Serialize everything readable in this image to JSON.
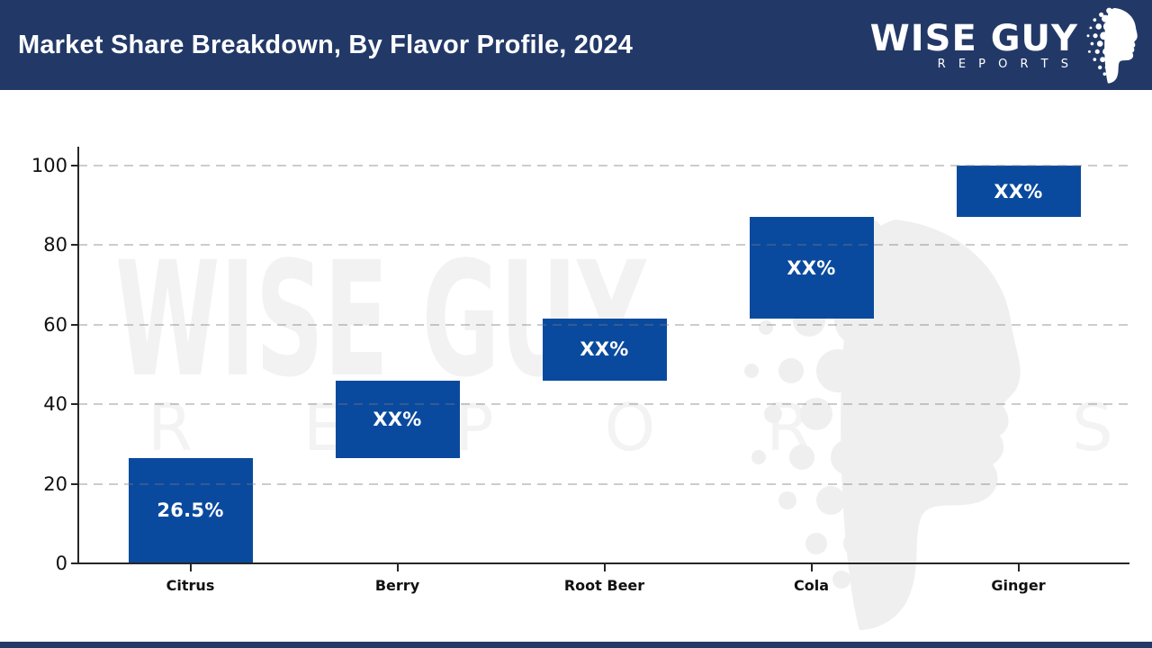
{
  "header": {
    "title": "Market Share Breakdown, By Flavor Profile, 2024",
    "bg_color": "#223968",
    "logo": {
      "brand_line1": "WISE GUY",
      "brand_line2": "R E P O R T S"
    }
  },
  "watermark": {
    "line1": "WISE GUY",
    "line2": "R E P O R T S"
  },
  "chart_data": {
    "type": "bar",
    "subtype": "waterfall",
    "title": "Market Share Breakdown, By Flavor Profile, 2024",
    "categories": [
      "Citrus",
      "Berry",
      "Root Beer",
      "Cola",
      "Ginger"
    ],
    "segments": [
      {
        "category": "Citrus",
        "start": 0,
        "end": 26.5,
        "label": "26.5%"
      },
      {
        "category": "Berry",
        "start": 26.5,
        "end": 46,
        "label": "XX%"
      },
      {
        "category": "Root Beer",
        "start": 46,
        "end": 61.5,
        "label": "XX%"
      },
      {
        "category": "Cola",
        "start": 61.5,
        "end": 87,
        "label": "XX%"
      },
      {
        "category": "Ginger",
        "start": 87,
        "end": 100,
        "label": "XX%"
      }
    ],
    "yticks": [
      0,
      20,
      40,
      60,
      80,
      100
    ],
    "ylim": [
      0,
      100
    ],
    "grid": "horizontal-dashed",
    "legend": "none",
    "bar_color": "#0a4a9e",
    "bar_label_color": "#ffffff",
    "axis_color": "#262626",
    "header_footer_color": "#223968"
  },
  "footer": {}
}
